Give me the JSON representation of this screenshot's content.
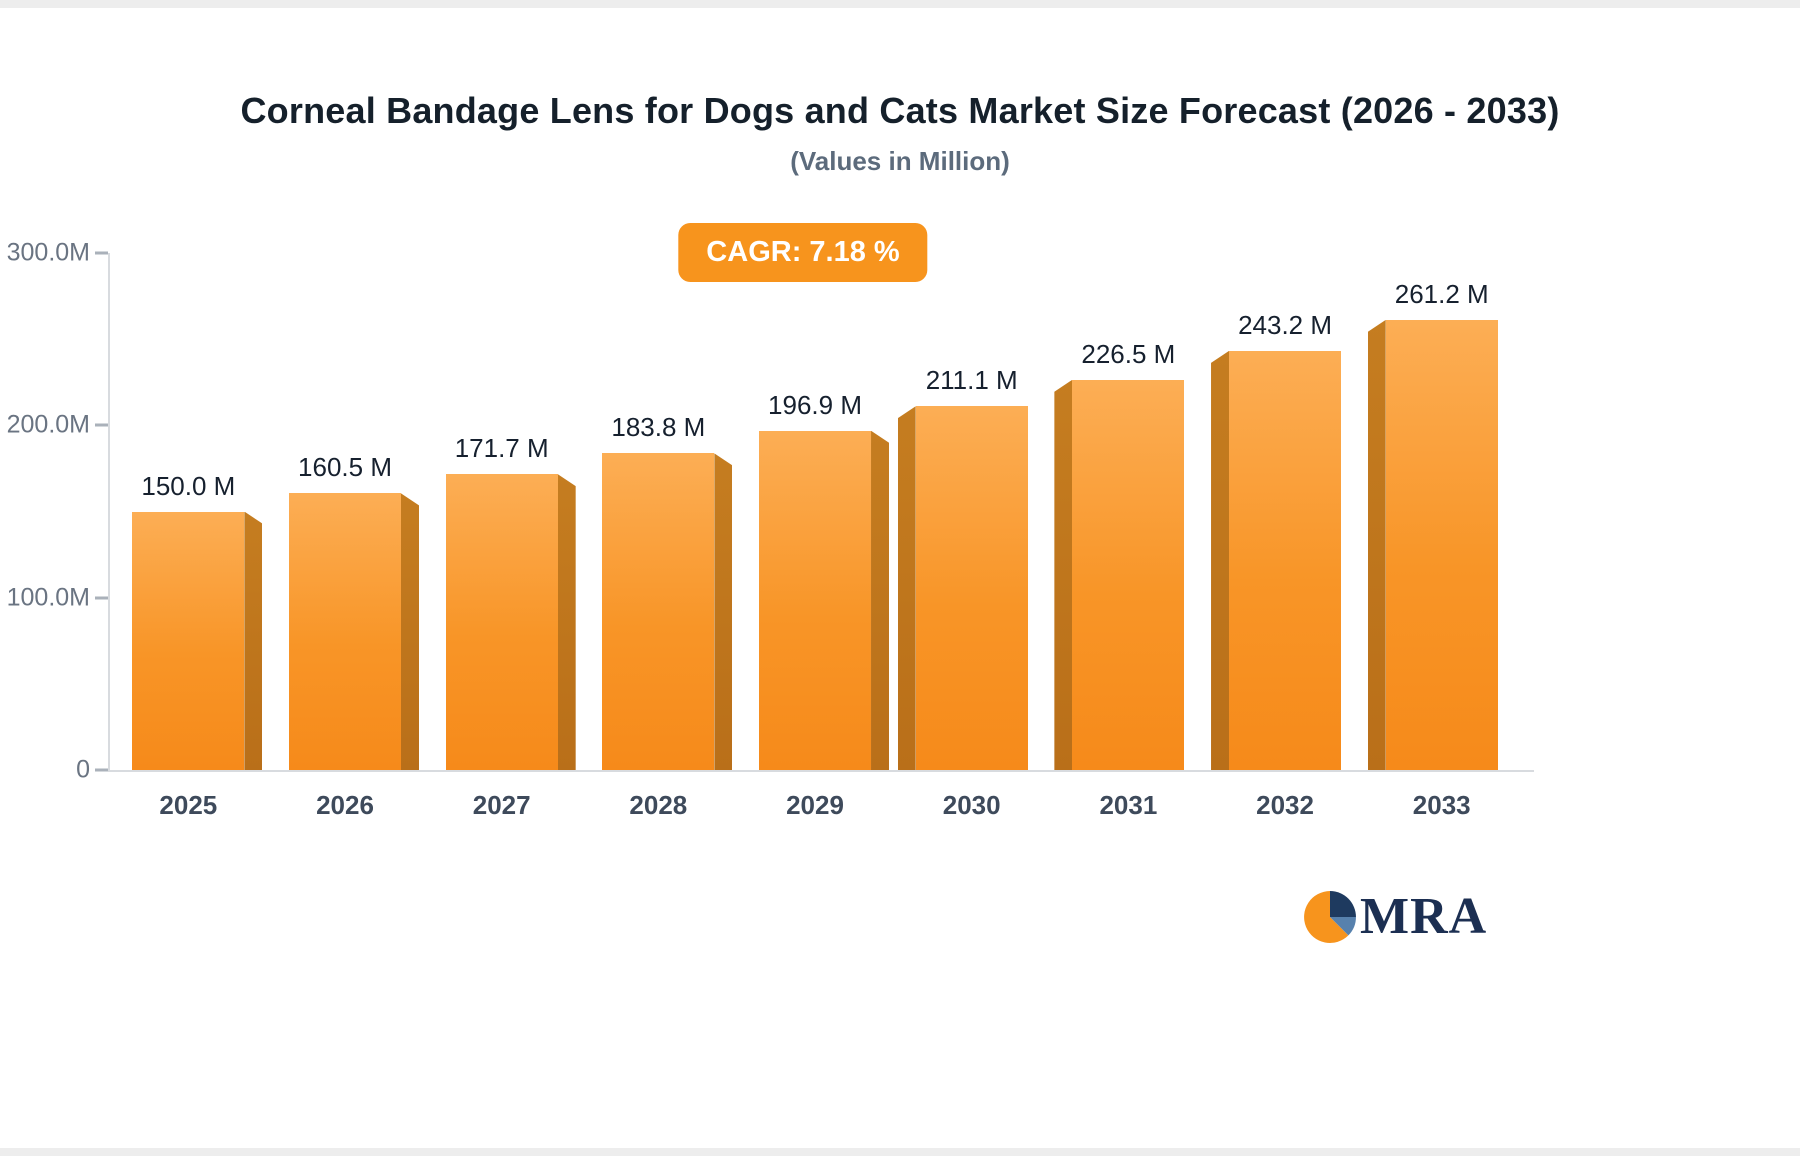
{
  "page": {
    "background": "#ffffff",
    "frame_color": "#ededed"
  },
  "header": {
    "title": "Corneal Bandage Lens for Dogs and Cats Market Size Forecast (2026 - 2033)",
    "subtitle": "(Values in Million)"
  },
  "badge": {
    "label": "CAGR: 7.18 %",
    "background": "#F7941D",
    "text_color": "#FFFFFF"
  },
  "chart_data": {
    "type": "bar",
    "title": "Corneal Bandage Lens for Dogs and Cats Market Size Forecast (2026 - 2033)",
    "subtitle": "(Values in Million)",
    "categories": [
      "2025",
      "2026",
      "2027",
      "2028",
      "2029",
      "2030",
      "2031",
      "2032",
      "2033"
    ],
    "values": [
      150.0,
      160.5,
      171.7,
      183.8,
      196.9,
      211.1,
      226.5,
      243.2,
      261.2
    ],
    "value_labels": [
      "150.0 M",
      "160.5 M",
      "171.7 M",
      "183.8 M",
      "196.9 M",
      "211.1 M",
      "226.5 M",
      "243.2 M",
      "261.2 M"
    ],
    "cagr_label": "CAGR: 7.18 %",
    "xlabel": "",
    "ylabel": "",
    "ylim": [
      0,
      300
    ],
    "y_ticks": [
      {
        "label": "300.0M",
        "value": 300
      },
      {
        "label": "200.0M",
        "value": 200
      },
      {
        "label": "100.0M",
        "value": 100
      },
      {
        "label": "0",
        "value": 0
      }
    ],
    "grid": false,
    "legend": "none",
    "colors": {
      "bar_face_top": "#FCAE55",
      "bar_face_bottom": "#F68A1A",
      "bar_side": "#BE7318",
      "axis_line": "#D8DBDF",
      "tick_text": "#6A7482",
      "x_label_text": "#3E4A5B",
      "value_label_text": "#16202E"
    }
  },
  "logo": {
    "text": "MRA",
    "icon": "pie-circle-icon",
    "colors": {
      "orange": "#F7941D",
      "navy": "#1E3A5F",
      "blue": "#5781AD",
      "text": "#1C2F52"
    }
  }
}
